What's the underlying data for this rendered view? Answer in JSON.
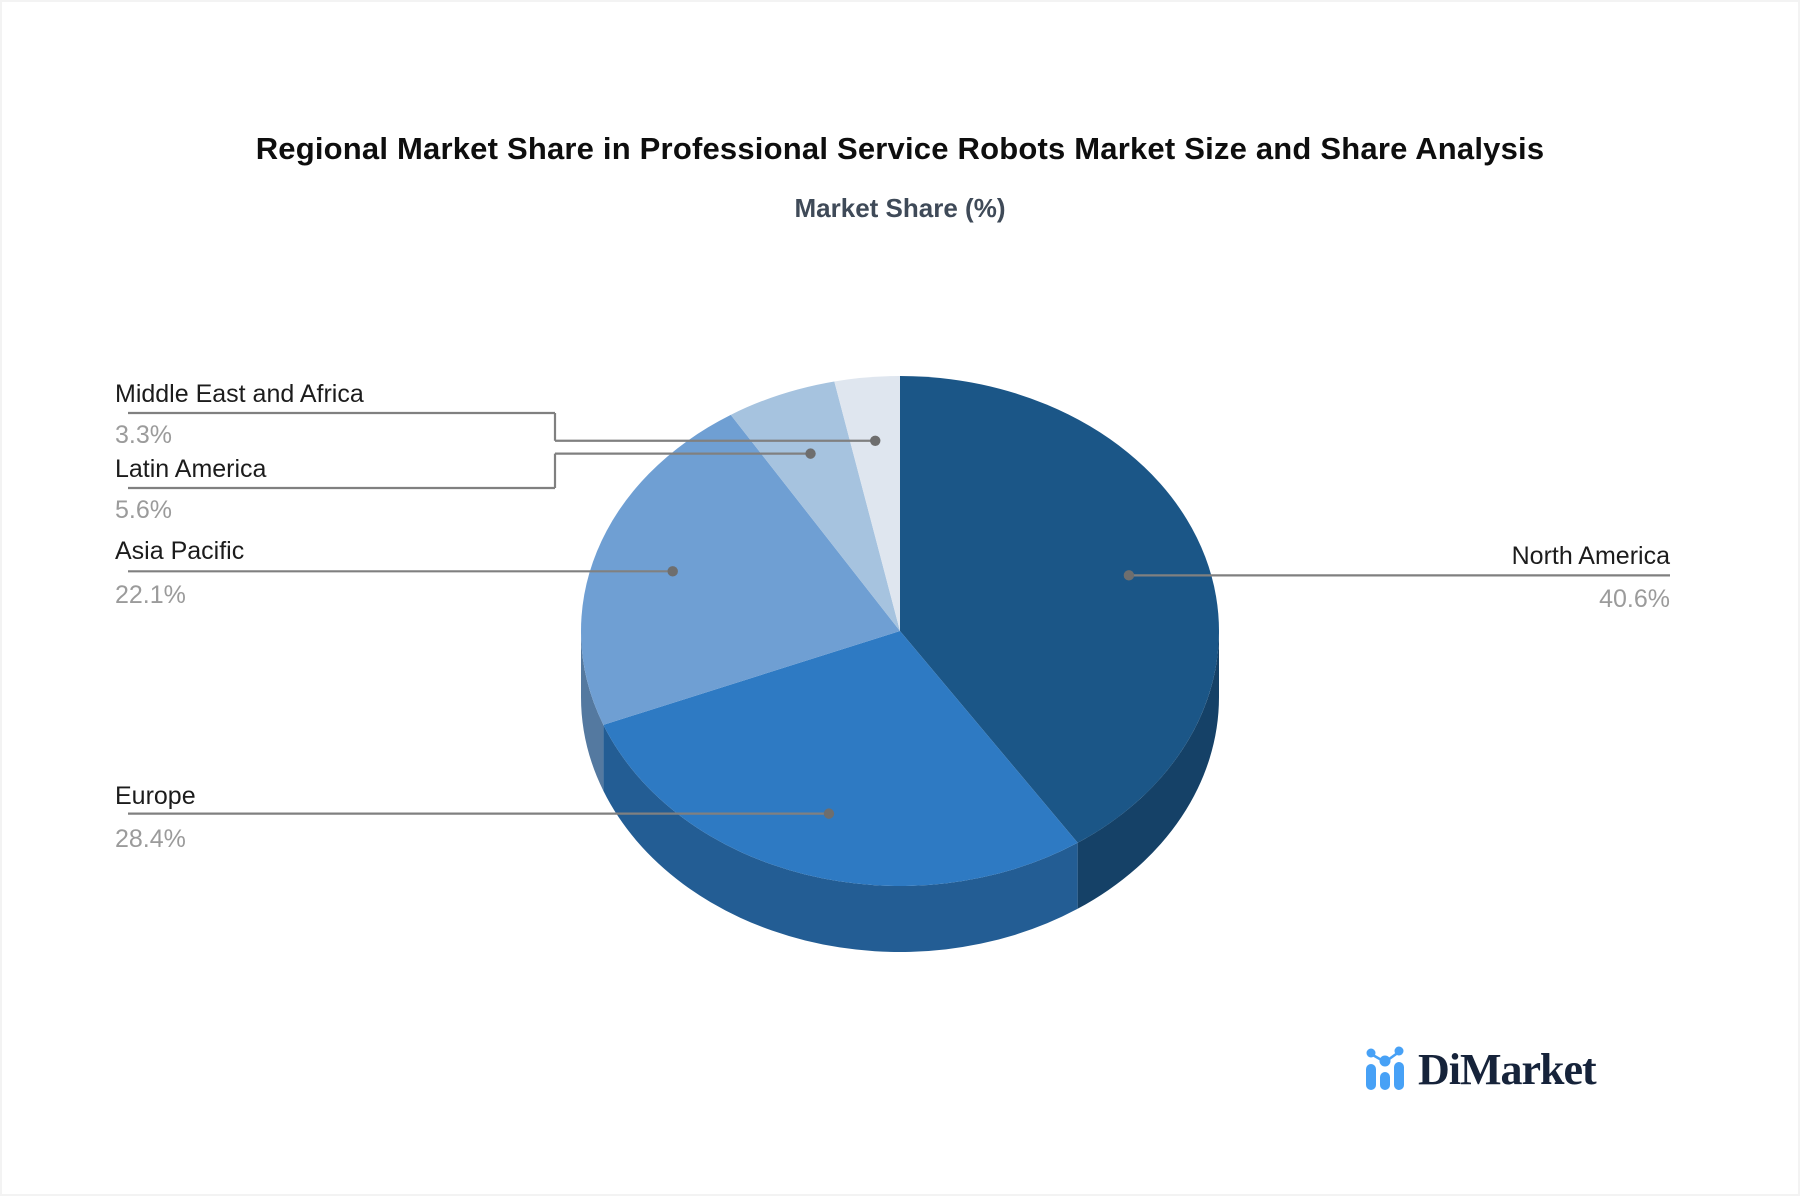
{
  "header": {
    "title": "Regional Market Share in Professional Service Robots Market Size and Share Analysis",
    "subtitle": "Market Share (%)"
  },
  "chart_data": {
    "type": "pie",
    "style": "3d",
    "title": "Regional Market Share in Professional Service Robots Market Size and Share Analysis",
    "subtitle": "Market Share (%)",
    "unit": "%",
    "direction": "clockwise",
    "start_angle_deg": 0,
    "legend_position": "none",
    "categories": [
      "North America",
      "Europe",
      "Asia Pacific",
      "Latin America",
      "Middle East and Africa"
    ],
    "values": [
      40.6,
      28.4,
      22.1,
      5.6,
      3.3
    ],
    "labels": [
      "40.6%",
      "28.4%",
      "22.1%",
      "5.6%",
      "3.3%"
    ],
    "colors": [
      "#1b5687",
      "#2e7ac3",
      "#6f9fd3",
      "#a6c3df",
      "#dfe6ef"
    ]
  },
  "annotation_style": {
    "leader_line_color": "#808080",
    "dot_color": "#6e6e6e",
    "name_color": "#1c1c1c",
    "percent_color": "#9b9b9b"
  },
  "branding": {
    "logo_text": "DiMarket",
    "logo_icon": "bar-line-chart-icon",
    "logo_text_color": "#16233a",
    "logo_accent_color": "#47a1f6"
  }
}
